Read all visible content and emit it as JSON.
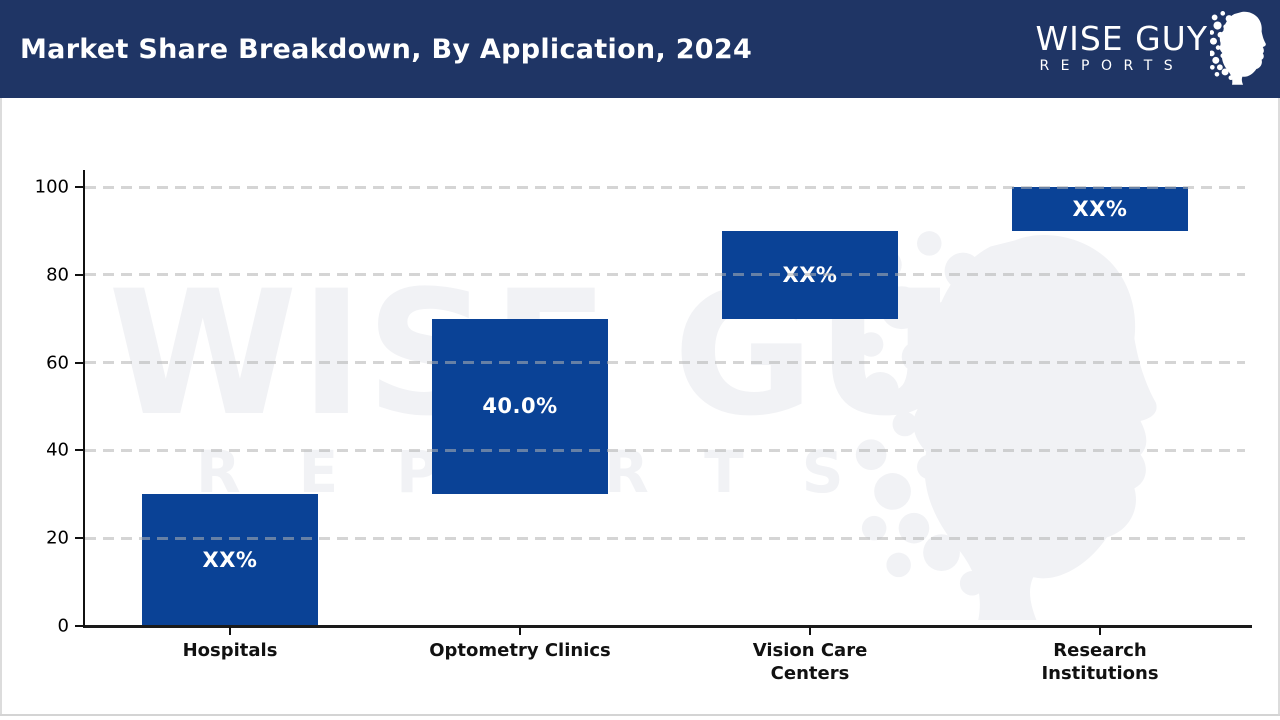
{
  "header": {
    "title": "Market Share Breakdown, By Application, 2024",
    "logo": {
      "name": "WISE GUY",
      "tagline": "REPORTS"
    }
  },
  "watermark": {
    "name": "WISE GUY",
    "tagline": "REPORTS"
  },
  "icons": {
    "brand": "head-profile-dots-icon",
    "watermark": "head-profile-dots-icon"
  },
  "colors": {
    "header_bg": "#1f3565",
    "bar": "#0a4296",
    "bar_label": "#ffffff",
    "axis": "#1a1a1a",
    "gridline": "#d9d9d9",
    "watermark": "#f1f2f5"
  },
  "chart_data": {
    "type": "bar",
    "variant": "floating-waterfall",
    "title": "Market Share Breakdown, By Application, 2024",
    "xlabel": "",
    "ylabel": "",
    "ylim": [
      0,
      100
    ],
    "yticks": [
      0,
      20,
      40,
      60,
      80,
      100
    ],
    "grid": "horizontal-dashed",
    "legend": "none",
    "categories": [
      "Hospitals",
      "Optometry Clinics",
      "Vision Care\nCenters",
      "Research\nInstitutions"
    ],
    "bars": [
      {
        "category": "Hospitals",
        "from": 0,
        "to": 30,
        "height": 30,
        "label": "XX%"
      },
      {
        "category": "Optometry Clinics",
        "from": 30,
        "to": 70,
        "height": 40,
        "label": "40.0%"
      },
      {
        "category": "Vision Care\nCenters",
        "from": 70,
        "to": 90,
        "height": 20,
        "label": "XX%"
      },
      {
        "category": "Research\nInstitutions",
        "from": 90,
        "to": 100,
        "height": 10,
        "label": "XX%"
      }
    ]
  }
}
